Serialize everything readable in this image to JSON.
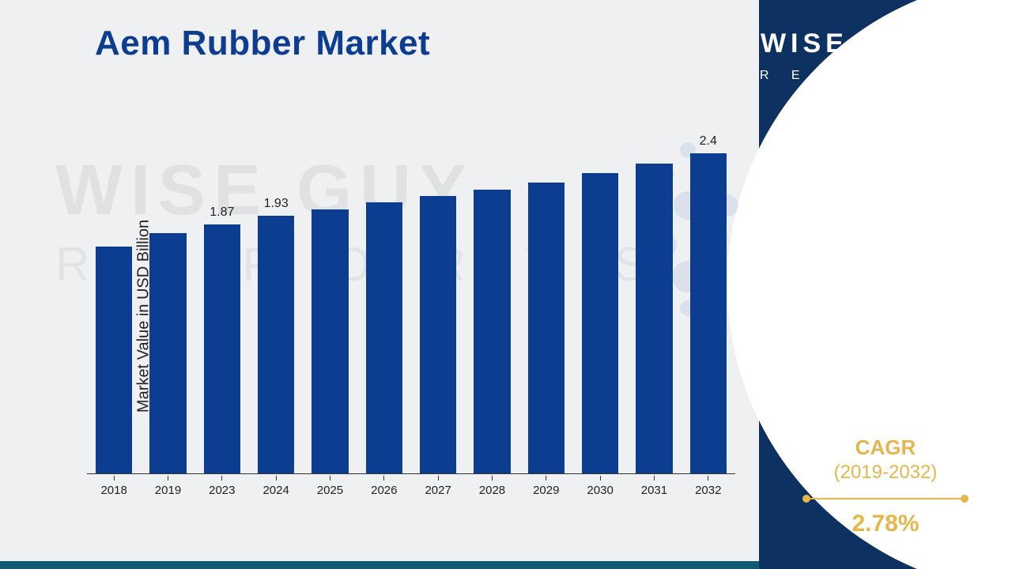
{
  "title": "Aem Rubber Market",
  "logo": {
    "main": "WISE GUY",
    "sub": "R E P O R T S"
  },
  "watermark": {
    "line1": "WISE GUY",
    "line2": "R E P O R T S"
  },
  "cagr": {
    "label": "CAGR",
    "period": "(2019-2032)",
    "value": "2.78%"
  },
  "chart": {
    "type": "bar",
    "ylabel": "Market Value in USD Billion",
    "ylabel_fontsize": 20,
    "xlabel_fontsize": 15,
    "bar_label_fontsize": 16,
    "bar_color": "#0d3d91",
    "background_color": "#eef0f2",
    "axis_color": "#333333",
    "categories": [
      "2018",
      "2019",
      "2023",
      "2024",
      "2025",
      "2026",
      "2027",
      "2028",
      "2029",
      "2030",
      "2031",
      "2032"
    ],
    "values": [
      1.7,
      1.8,
      1.87,
      1.93,
      1.98,
      2.03,
      2.08,
      2.13,
      2.18,
      2.25,
      2.32,
      2.4
    ],
    "show_labels_on_index": [
      2,
      3,
      11
    ],
    "ymax": 2.6,
    "bar_width_ratio": 0.68
  },
  "colors": {
    "panel_blue": "#0d3262",
    "title_blue": "#0d3d91",
    "gold": "#e6b64a",
    "bg": "#eef0f2",
    "white": "#ffffff",
    "bottom_bar": "#0e5b73"
  }
}
